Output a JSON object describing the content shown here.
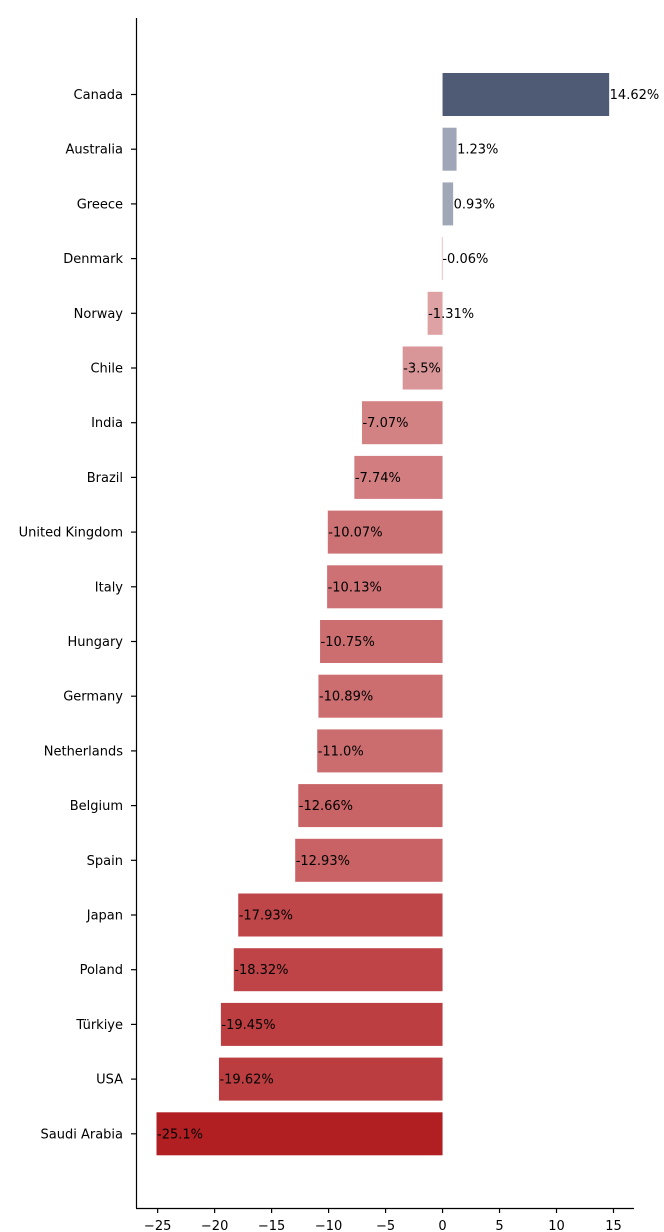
{
  "chart_data": {
    "type": "bar",
    "orientation": "horizontal",
    "title": "",
    "xlabel": "",
    "ylabel": "",
    "xlim": [
      -26.9,
      16.8
    ],
    "x_ticks": [
      -25,
      -20,
      -15,
      -10,
      -5,
      0,
      5,
      10,
      15
    ],
    "x_tick_labels": [
      "−25",
      "−20",
      "−15",
      "−10",
      "−5",
      "0",
      "5",
      "10",
      "15"
    ],
    "grid": false,
    "legend": "none",
    "categories": [
      "Canada",
      "Australia",
      "Greece",
      "Denmark",
      "Norway",
      "Chile",
      "India",
      "Brazil",
      "United Kingdom",
      "Italy",
      "Hungary",
      "Germany",
      "Netherlands",
      "Belgium",
      "Spain",
      "Japan",
      "Poland",
      "Türkiye",
      "USA",
      "Saudi Arabia"
    ],
    "values": [
      14.62,
      1.23,
      0.93,
      -0.06,
      -1.31,
      -3.5,
      -7.07,
      -7.74,
      -10.07,
      -10.13,
      -10.75,
      -10.89,
      -11.0,
      -12.66,
      -12.93,
      -17.93,
      -18.32,
      -19.45,
      -19.62,
      -25.1
    ],
    "data_labels": [
      "14.62%",
      "1.23%",
      "0.93%",
      "-0.06%",
      "-1.31%",
      "-3.5%",
      "-7.07%",
      "-7.74%",
      "-10.07%",
      "-10.13%",
      "-10.75%",
      "-10.89%",
      "-11.0%",
      "-12.66%",
      "-12.93%",
      "-17.93%",
      "-18.32%",
      "-19.45%",
      "-19.62%",
      "-25.1%"
    ],
    "colors": {
      "positive_strong": "#4f5b74",
      "positive_light": "#a6adbd",
      "negative_light": "#e0a9ab",
      "negative_strong": "#b11f22",
      "axis": "#000000",
      "label_text": "#000000"
    }
  }
}
